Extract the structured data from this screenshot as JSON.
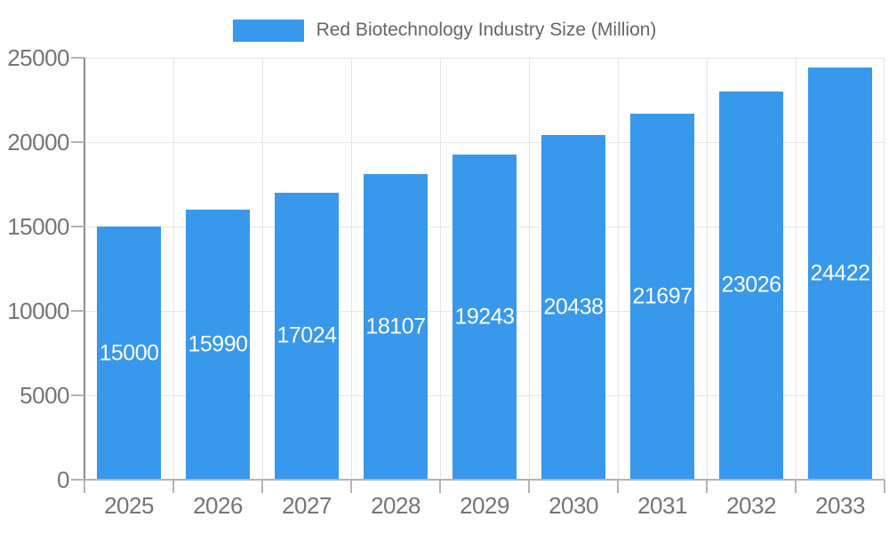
{
  "chart_data": {
    "type": "bar",
    "categories": [
      "2025",
      "2026",
      "2027",
      "2028",
      "2029",
      "2030",
      "2031",
      "2032",
      "2033"
    ],
    "values": [
      15000,
      15990,
      17024,
      18107,
      19243,
      20438,
      21697,
      23026,
      24422
    ],
    "series_name": "Red Biotechnology Industry Size (Million)",
    "title": "",
    "xlabel": "",
    "ylabel": "",
    "ylim": [
      0,
      25000
    ],
    "yticks": [
      0,
      5000,
      10000,
      15000,
      20000,
      25000
    ],
    "grid": true,
    "legend_position": "top",
    "bar_labels_visible": true
  },
  "legend": {
    "label": "Red Biotechnology Industry Size (Million)"
  },
  "colors": {
    "bar": "#3898ec",
    "bar_label": "#ffffff",
    "axis_label": "#757575",
    "legend_text": "#666666",
    "gridline": "#e6e6e6",
    "axis_line": "#8c8c8c",
    "baseline": "#b3b3b3",
    "tick": "#b3b3b3",
    "background": "#ffffff"
  }
}
